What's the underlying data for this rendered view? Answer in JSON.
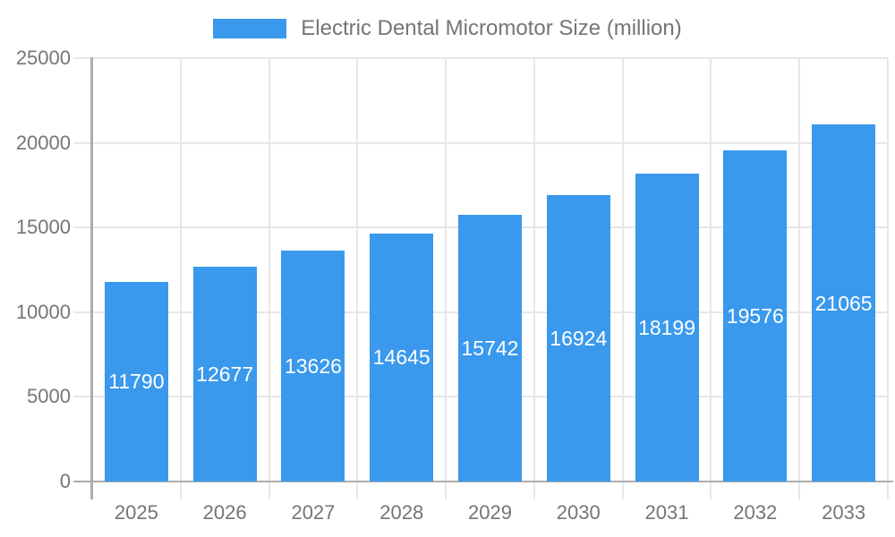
{
  "chart_data": {
    "type": "bar",
    "title": "Electric Dental Micromotor Size (million)",
    "categories": [
      "2025",
      "2026",
      "2027",
      "2028",
      "2029",
      "2030",
      "2031",
      "2032",
      "2033"
    ],
    "values": [
      11790,
      12677,
      13626,
      14645,
      15742,
      16924,
      18199,
      19576,
      21065
    ],
    "xlabel": "",
    "ylabel": "",
    "ylim": [
      0,
      25000
    ],
    "yticks": [
      0,
      5000,
      10000,
      15000,
      20000,
      25000
    ],
    "grid": true,
    "legend_position": "top-center",
    "value_labels": "inside-bar-centered",
    "bar_color": "#3A99EC",
    "value_label_color": "#FFFFFF",
    "axis_text_color": "#757575",
    "gridline_color": "#E7E7E7",
    "axis_line_color": "#ADADAD"
  }
}
